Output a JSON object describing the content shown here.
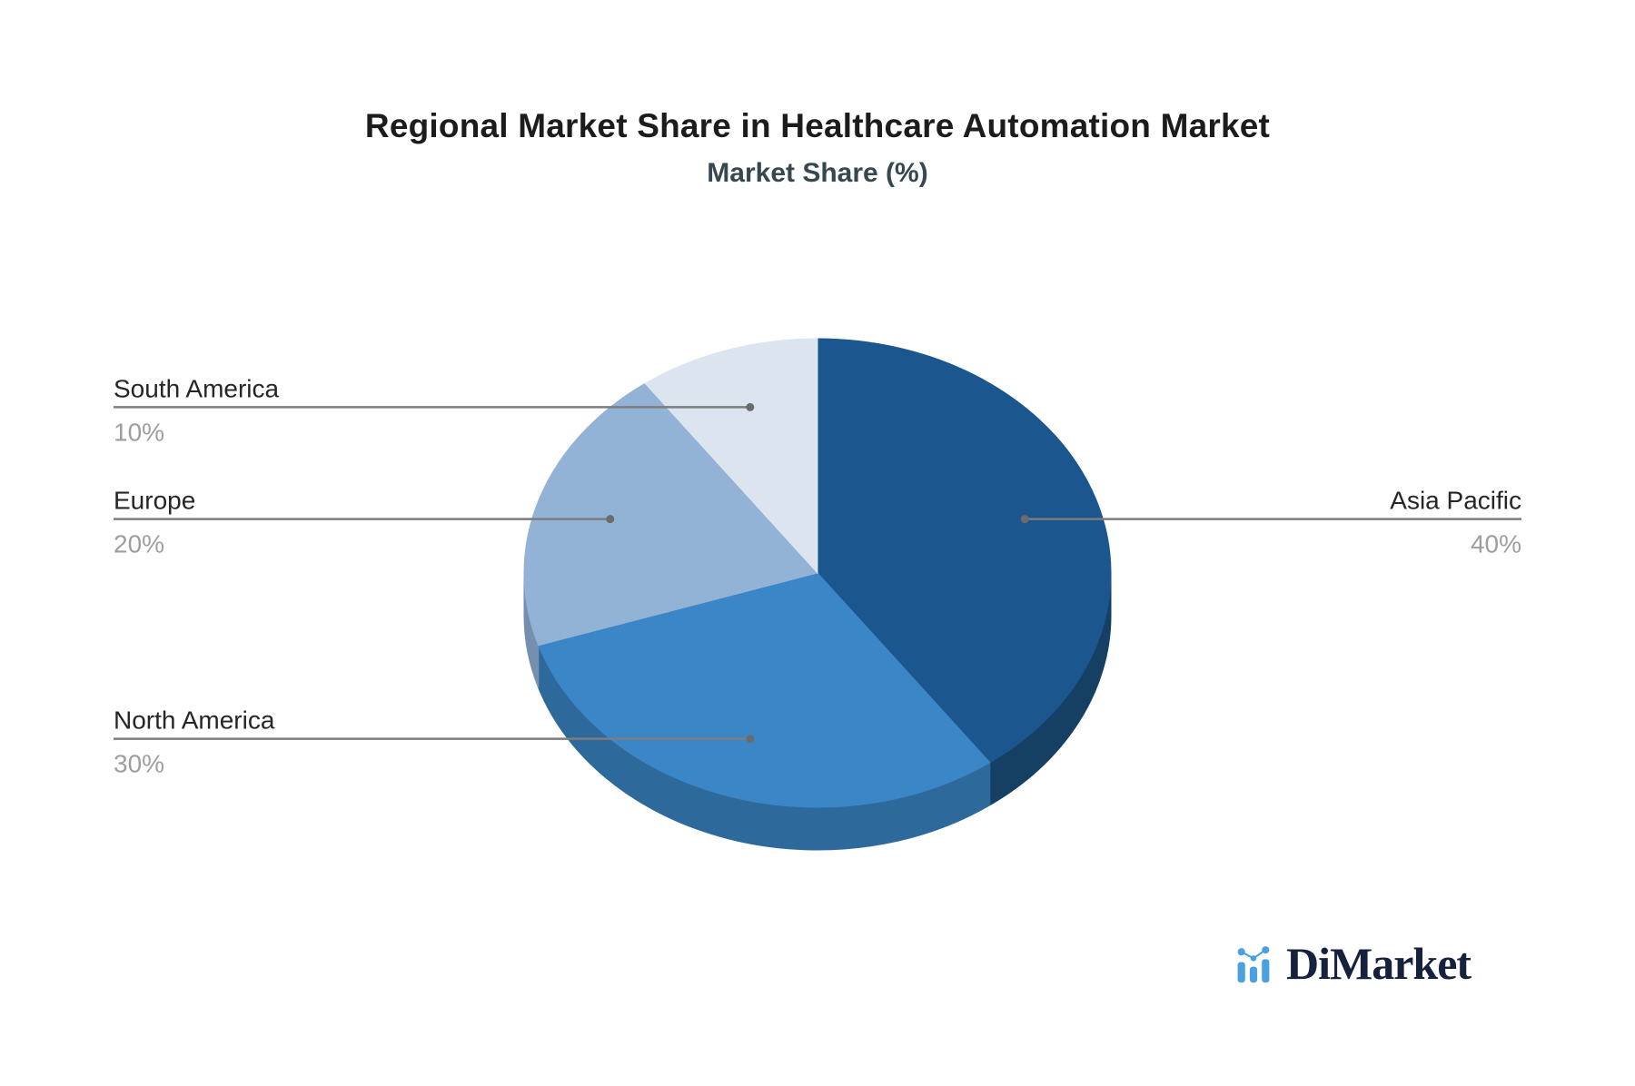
{
  "header": {
    "title": "Regional Market Share in Healthcare Automation Market",
    "subtitle": "Market Share (%)"
  },
  "chart_data": {
    "type": "pie",
    "variant": "3d-pie",
    "title": "Regional Market Share in Healthcare Automation Market",
    "subtitle": "Market Share (%)",
    "unit": "%",
    "start_angle_deg": 0,
    "direction": "clockwise",
    "legend": "none",
    "slices": [
      {
        "label": "Asia Pacific",
        "value": 40,
        "pct_label": "40%",
        "color": "#1c568e",
        "depth_color": "#154063",
        "label_side": "right"
      },
      {
        "label": "North America",
        "value": 30,
        "pct_label": "30%",
        "color": "#3b86c7",
        "depth_color": "#2e699c",
        "label_side": "left"
      },
      {
        "label": "Europe",
        "value": 20,
        "pct_label": "20%",
        "color": "#93b3d6",
        "depth_color": "#7590af",
        "label_side": "left"
      },
      {
        "label": "South America",
        "value": 10,
        "pct_label": "10%",
        "color": "#dce4ef",
        "depth_color": "#b4bfce",
        "label_side": "left"
      }
    ],
    "label_name_color": "#262626",
    "label_pct_color": "#9e9e9e",
    "leader_line_color": "#7d7d7d",
    "leader_dot_color": "#6b6b6b"
  },
  "logo": {
    "text": "DiMarket",
    "text_color": "#16213d",
    "icon": "bar-line-chart-icon",
    "icon_color": "#4aa0e0"
  }
}
